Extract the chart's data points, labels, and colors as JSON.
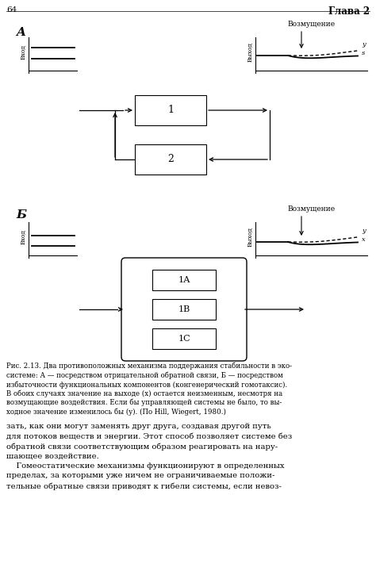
{
  "page_num": "64",
  "chapter": "Глава 2",
  "section_A_label": "A",
  "section_B_label": "Б",
  "vhod_label": "Вход",
  "vyhod_label": "Выход",
  "vozmushenie_label": "Возмущение",
  "box1_label": "1",
  "box2_label": "2",
  "box1A_label": "1А",
  "box1B_label": "1В",
  "box1C_label": "1С",
  "curve_y_label": "y",
  "curve_s_label": "s",
  "curve_x_label": "x",
  "caption_lines": [
    "Рис. 2.13. Два противоположных механизма поддержания стабильности в эко-",
    "системе: А — посредством отрицательной обратной связи, Б — посредством",
    "избыточности функциональных компонентов (конгенерический гомотаксис).",
    "В обоих случаях значение на выходе (x) остается неизменным, несмотря на",
    "возмущающие воздействия. Если бы управляющей системы не было, то вы-",
    "ходное значение изменилось бы (y). (По Hill, Wiegert, 1980.)"
  ],
  "body_lines": [
    "зать, как они могут заменять друг друга, создавая другой путь",
    "для потоков веществ и энергии. Этот способ позволяет системе без",
    "обратной связи соответствующим образом реагировать на нару-",
    "шающее воздействие.",
    "    Гомеостатические механизмы функционируют в определенных",
    "пределах, за которыми уже ничем не ограничиваемые положи-",
    "тельные обратные связи приводят к гибели системы, если невоз-"
  ],
  "bg_color": "#ffffff",
  "text_color": "#000000",
  "line_color": "#000000"
}
